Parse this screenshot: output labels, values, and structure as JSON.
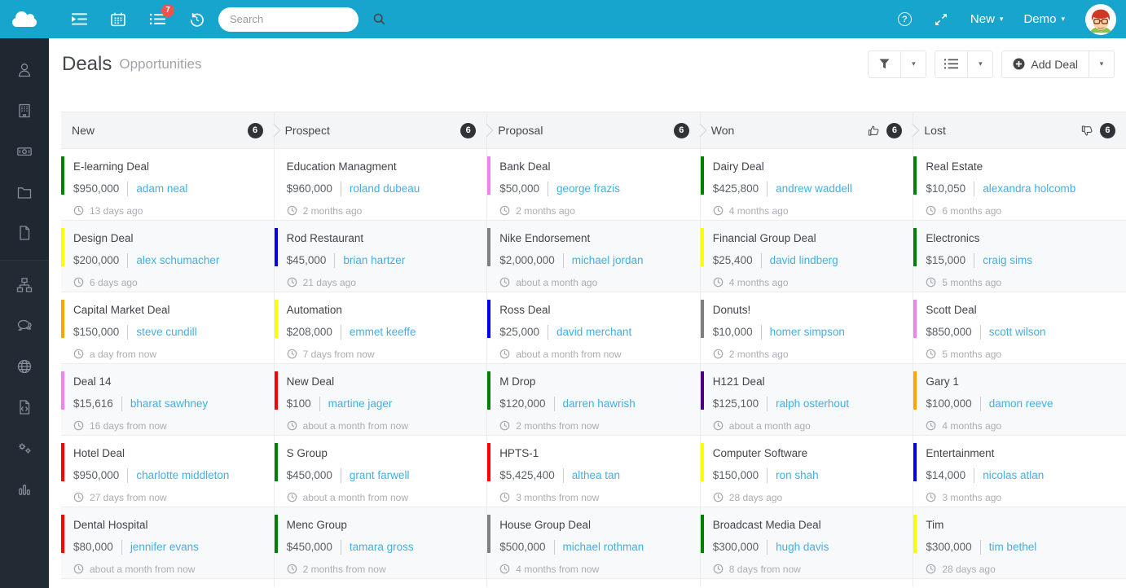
{
  "topbar": {
    "search_placeholder": "Search",
    "tasks_badge": "7",
    "new_menu_label": "New",
    "user_menu_label": "Demo",
    "icons": [
      "sidebar-toggle-icon",
      "calendar-icon",
      "tasks-icon",
      "history-icon",
      "help-icon",
      "expand-icon"
    ]
  },
  "page_header": {
    "title": "Deals",
    "subtitle": "Opportunities",
    "add_deal_label": "Add Deal"
  },
  "sidebar": {
    "items": [
      {
        "icon": "contacts"
      },
      {
        "icon": "companies"
      },
      {
        "icon": "deals"
      },
      {
        "icon": "folders"
      },
      {
        "icon": "documents"
      },
      {
        "icon": "org-structure"
      },
      {
        "icon": "chat"
      },
      {
        "icon": "web"
      },
      {
        "icon": "code-document"
      },
      {
        "icon": "settings"
      },
      {
        "icon": "reports"
      }
    ]
  },
  "board": {
    "columns": [
      {
        "name": "New",
        "count": "6",
        "thumb": null,
        "cards": [
          {
            "title": "E-learning Deal",
            "amount": "$950,000",
            "person": "adam neal",
            "time": "13 days ago",
            "color": "#008000"
          },
          {
            "title": "Design Deal",
            "amount": "$200,000",
            "person": "alex schumacher",
            "time": "6 days ago",
            "color": "#ffff00"
          },
          {
            "title": "Capital Market Deal",
            "amount": "$150,000",
            "person": "steve cundill",
            "time": "a day from now",
            "color": "#ffa500"
          },
          {
            "title": "Deal 14",
            "amount": "$15,616",
            "person": "bharat sawhney",
            "time": "16 days from now",
            "color": "#ee82ee"
          },
          {
            "title": "Hotel Deal",
            "amount": "$950,000",
            "person": "charlotte middleton",
            "time": "27 days from now",
            "color": "#ff0000"
          },
          {
            "title": "Dental Hospital",
            "amount": "$80,000",
            "person": "jennifer evans",
            "time": "about a month from now",
            "color": "#ff0000"
          }
        ]
      },
      {
        "name": "Prospect",
        "count": "6",
        "thumb": null,
        "cards": [
          {
            "title": "Education Managment",
            "amount": "$960,000",
            "person": "roland dubeau",
            "time": "2 months ago",
            "color": null
          },
          {
            "title": "Rod Restaurant",
            "amount": "$45,000",
            "person": "brian hartzer",
            "time": "21 days ago",
            "color": "#0000ee"
          },
          {
            "title": "Automation",
            "amount": "$208,000",
            "person": "emmet keeffe",
            "time": "7 days from now",
            "color": "#ffff00"
          },
          {
            "title": "New Deal",
            "amount": "$100",
            "person": "martine jager",
            "time": "about a month from now",
            "color": "#ff0000"
          },
          {
            "title": "S Group",
            "amount": "$450,000",
            "person": "grant farwell",
            "time": "about a month from now",
            "color": "#008000"
          },
          {
            "title": "Menc Group",
            "amount": "$450,000",
            "person": "tamara gross",
            "time": "2 months from now",
            "color": "#008000"
          }
        ]
      },
      {
        "name": "Proposal",
        "count": "6",
        "thumb": null,
        "cards": [
          {
            "title": "Bank Deal",
            "amount": "$50,000",
            "person": "george frazis",
            "time": "2 months ago",
            "color": "#ee82ee"
          },
          {
            "title": "Nike Endorsement",
            "amount": "$2,000,000",
            "person": "michael jordan",
            "time": "about a month ago",
            "color": "#808080"
          },
          {
            "title": "Ross Deal",
            "amount": "$25,000",
            "person": "david merchant",
            "time": "about a month from now",
            "color": "#0000ee"
          },
          {
            "title": "M Drop",
            "amount": "$120,000",
            "person": "darren hawrish",
            "time": "2 months from now",
            "color": "#008000"
          },
          {
            "title": "HPTS-1",
            "amount": "$5,425,400",
            "person": "althea tan",
            "time": "3 months from now",
            "color": "#ff0000"
          },
          {
            "title": "House Group Deal",
            "amount": "$500,000",
            "person": "michael rothman",
            "time": "4 months from now",
            "color": "#808080"
          }
        ]
      },
      {
        "name": "Won",
        "count": "6",
        "thumb": "up",
        "cards": [
          {
            "title": "Dairy Deal",
            "amount": "$425,800",
            "person": "andrew waddell",
            "time": "4 months ago",
            "color": "#008000"
          },
          {
            "title": "Financial Group Deal",
            "amount": "$25,400",
            "person": "david lindberg",
            "time": "4 months ago",
            "color": "#ffff00"
          },
          {
            "title": "Donuts!",
            "amount": "$10,000",
            "person": "homer simpson",
            "time": "2 months ago",
            "color": "#808080"
          },
          {
            "title": "H121 Deal",
            "amount": "$125,100",
            "person": "ralph osterhout",
            "time": "about a month ago",
            "color": "#4b0082"
          },
          {
            "title": "Computer Software",
            "amount": "$150,000",
            "person": "ron shah",
            "time": "28 days ago",
            "color": "#ffff00"
          },
          {
            "title": "Broadcast Media Deal",
            "amount": "$300,000",
            "person": "hugh davis",
            "time": "8 days from now",
            "color": "#008000"
          }
        ]
      },
      {
        "name": "Lost",
        "count": "6",
        "thumb": "down",
        "cards": [
          {
            "title": "Real Estate",
            "amount": "$10,050",
            "person": "alexandra holcomb",
            "time": "6 months ago",
            "color": "#008000"
          },
          {
            "title": "Electronics",
            "amount": "$15,000",
            "person": "craig sims",
            "time": "5 months ago",
            "color": "#008000"
          },
          {
            "title": "Scott Deal",
            "amount": "$850,000",
            "person": "scott wilson",
            "time": "5 months ago",
            "color": "#ee82ee"
          },
          {
            "title": "Gary 1",
            "amount": "$100,000",
            "person": "damon reeve",
            "time": "4 months ago",
            "color": "#ffa500"
          },
          {
            "title": "Entertainment",
            "amount": "$14,000",
            "person": "nicolas atlan",
            "time": "3 months ago",
            "color": "#0000ee"
          },
          {
            "title": "Tim",
            "amount": "$300,000",
            "person": "tim bethel",
            "time": "28 days ago",
            "color": "#ffff00"
          }
        ]
      }
    ]
  },
  "colors": {
    "topbar_bg": "#18a5cd",
    "sidebar_bg": "#222a33",
    "link": "#41b0e2",
    "count_badge_bg": "#2f3337",
    "notification_badge_bg": "#ef5350"
  }
}
